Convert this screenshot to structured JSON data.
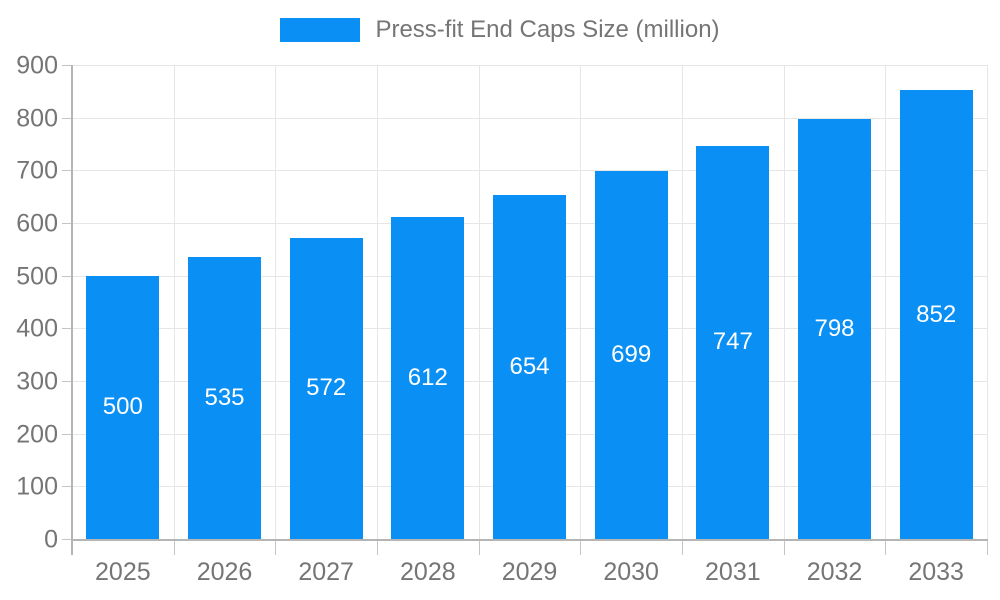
{
  "chart_data": {
    "type": "bar",
    "title": "",
    "legend": "Press-fit End Caps Size (million)",
    "categories": [
      "2025",
      "2026",
      "2027",
      "2028",
      "2029",
      "2030",
      "2031",
      "2032",
      "2033"
    ],
    "values": [
      500,
      535,
      572,
      612,
      654,
      699,
      747,
      798,
      852
    ],
    "xlabel": "",
    "ylabel": "",
    "ylim": [
      0,
      900
    ],
    "yticks": [
      0,
      100,
      200,
      300,
      400,
      500,
      600,
      700,
      800,
      900
    ],
    "grid": "on",
    "legend_position": "top-center",
    "value_labels": "inside-center"
  },
  "colors": {
    "bar": "#0a8ff5",
    "value_text": "#ffffff",
    "axis_text": "#757575",
    "legend_text": "#757575",
    "grid": "#e6e6e6",
    "axis_line": "#b5b5b5",
    "tick": "#c4c4c4",
    "background": "#ffffff"
  }
}
